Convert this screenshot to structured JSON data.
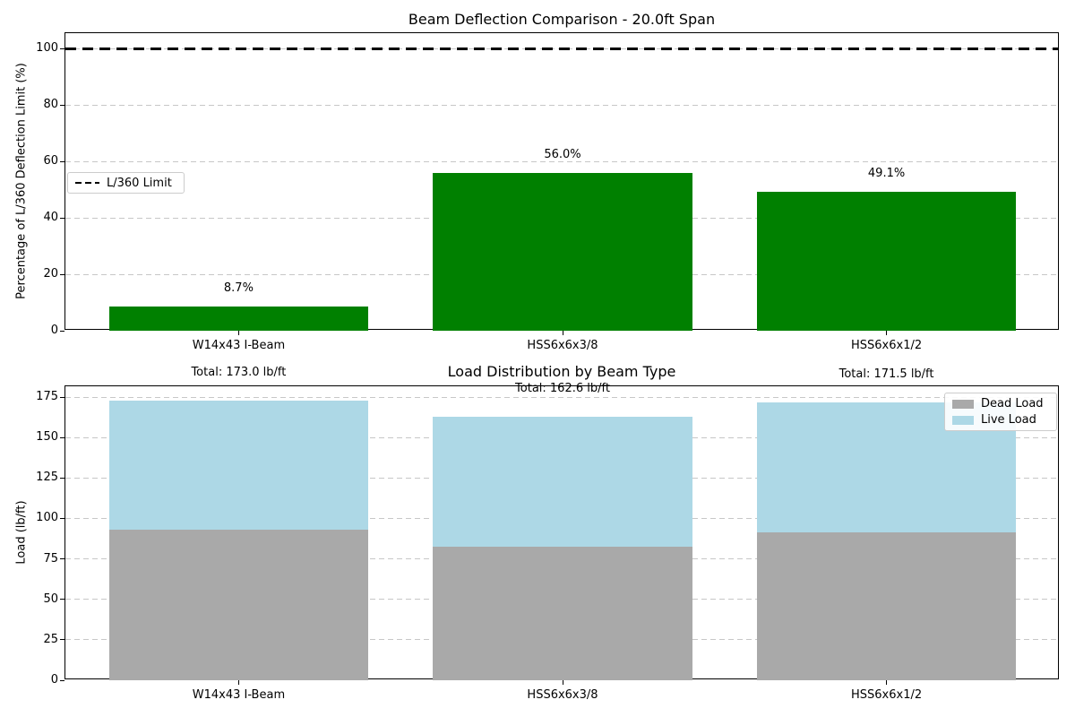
{
  "chart_data": [
    {
      "type": "bar",
      "title": "Beam Deflection Comparison - 20.0ft Span",
      "ylabel": "Percentage of L/360 Deflection Limit (%)",
      "xlabel": "",
      "categories": [
        "W14x43 I-Beam",
        "HSS6x6x3/8",
        "HSS6x6x1/2"
      ],
      "values": [
        8.7,
        56.0,
        49.1
      ],
      "bar_labels": [
        "8.7%",
        "56.0%",
        "49.1%"
      ],
      "bar_color": "#008000",
      "yticks": [
        0,
        20,
        40,
        60,
        80,
        100
      ],
      "ylim": [
        0,
        105.5
      ],
      "grid": "y-dashed",
      "reference_line": {
        "value": 100,
        "label": "L/360 Limit",
        "color": "#000000",
        "style": "dashed"
      },
      "legend_position": "center-left"
    },
    {
      "type": "stacked-bar",
      "title": "Load Distribution by Beam Type",
      "ylabel": "Load (lb/ft)",
      "xlabel": "",
      "categories": [
        "W14x43 I-Beam",
        "HSS6x6x3/8",
        "HSS6x6x1/2"
      ],
      "series": [
        {
          "name": "Dead Load",
          "color": "#a9a9a9",
          "values": [
            93.0,
            82.6,
            91.5
          ]
        },
        {
          "name": "Live Load",
          "color": "#add8e6",
          "values": [
            80.0,
            80.0,
            80.0
          ]
        }
      ],
      "totals": [
        173.0,
        162.6,
        171.5
      ],
      "total_labels": [
        "Total: 173.0 lb/ft",
        "Total: 162.6 lb/ft",
        "Total: 171.5 lb/ft"
      ],
      "yticks": [
        0,
        25,
        50,
        75,
        100,
        125,
        150,
        175
      ],
      "ylim": [
        0,
        181.65
      ],
      "grid": "y-dashed",
      "legend_position": "upper-right"
    }
  ]
}
